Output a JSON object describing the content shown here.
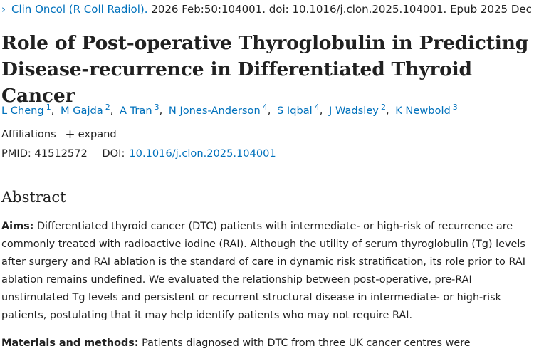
{
  "citation": {
    "journal": "Clin Oncol (R Coll Radiol).",
    "details": " 2026 Feb:50:104001. doi: 10.1016/j.clon.2025.104001. Epub 2025 Dec 11."
  },
  "article": {
    "title": "Role of Post-operative Thyroglobulin in Predicting Disease-recurrence in Differentiated Thyroid Cancer"
  },
  "authors": [
    {
      "name": "L Cheng",
      "aff": "1"
    },
    {
      "name": "M Gajda",
      "aff": "2"
    },
    {
      "name": "A Tran",
      "aff": "3"
    },
    {
      "name": "N Jones-Anderson",
      "aff": "4"
    },
    {
      "name": "S Iqbal",
      "aff": "4"
    },
    {
      "name": "J Wadsley",
      "aff": "2"
    },
    {
      "name": "K Newbold",
      "aff": "3"
    }
  ],
  "affiliations": {
    "label": "Affiliations",
    "expand_label": "expand"
  },
  "identifiers": {
    "pmid_label": "PMID:",
    "pmid": "41512572",
    "doi_label": "DOI:",
    "doi": "10.1016/j.clon.2025.104001"
  },
  "abstract": {
    "heading": "Abstract",
    "aims_label": "Aims:",
    "aims_text": " Differentiated thyroid cancer (DTC) patients with intermediate- or high-risk of recurrence are commonly treated with radioactive iodine (RAI). Although the utility of serum thyroglobulin (Tg) levels after surgery and RAI ablation is the standard of care in dynamic risk stratification, its role prior to RAI ablation remains undefined. We evaluated the relationship between post-operative, pre-RAI unstimulated Tg levels and persistent or recurrent structural disease in intermediate- or high-risk patients, postulating that it may help identify patients who may not require RAI.",
    "methods_label": "Materials and methods:",
    "methods_text": " Patients diagnosed with DTC from three UK cancer centres were"
  },
  "colors": {
    "link": "#0071bc",
    "text": "#212121",
    "background": "#ffffff"
  },
  "icons": {
    "journal_chevron": "chevron-right-icon",
    "expand_plus": "plus-icon"
  }
}
